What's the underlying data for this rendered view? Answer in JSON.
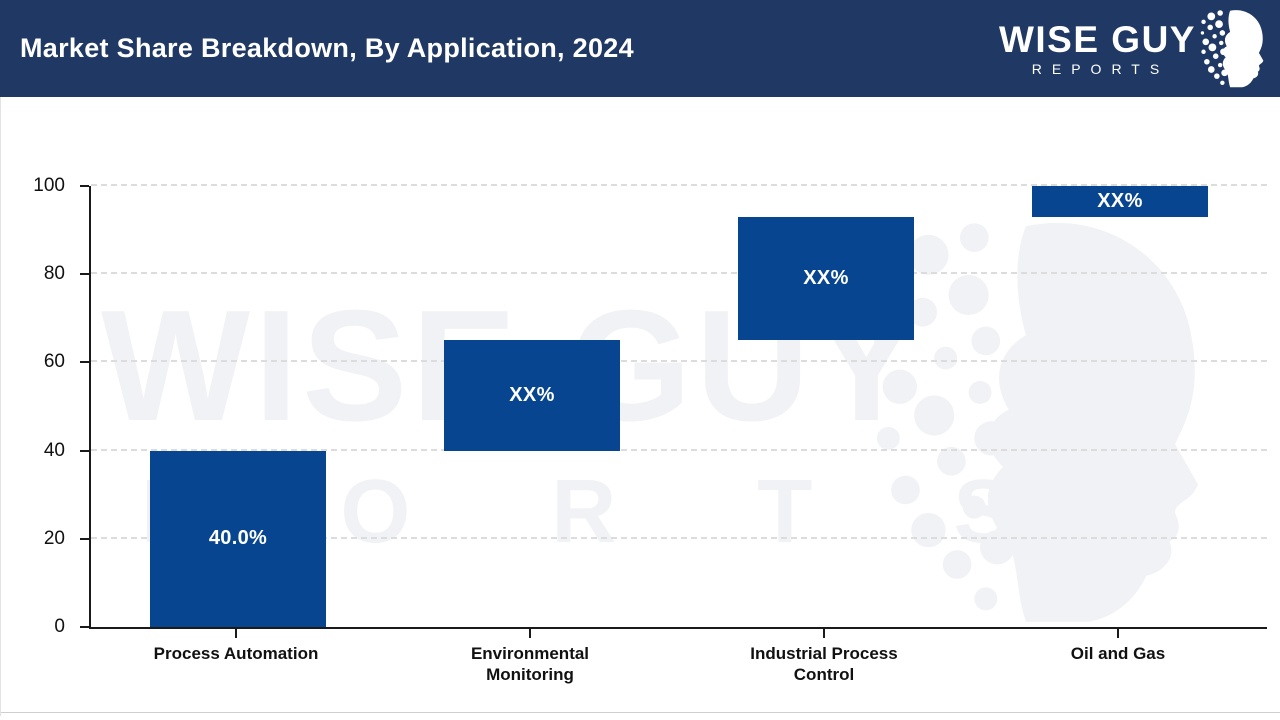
{
  "header": {
    "title": "Market Share Breakdown, By Application, 2024",
    "logo": {
      "line1": "WISE GUY",
      "line2": "REPORTS"
    }
  },
  "watermark": {
    "line1": "WISE GUY",
    "line2": "P O R T S"
  },
  "colors": {
    "header_bg": "#1f3864",
    "bar": "#084590",
    "bar_label": "#ffffff",
    "gridline": "#dcdcdc",
    "watermark": "#f1f2f5"
  },
  "chart_data": {
    "type": "bar",
    "variant": "floating-waterfall",
    "title": "Market Share Breakdown, By Application, 2024",
    "categories": [
      "Process Automation",
      "Environmental\nMonitoring",
      "Industrial Process\nControl",
      "Oil and Gas"
    ],
    "segments": [
      {
        "category": "Process Automation",
        "start": 0,
        "end": 40,
        "label": "40.0%"
      },
      {
        "category": "Environmental Monitoring",
        "start": 40,
        "end": 65,
        "label": "XX%"
      },
      {
        "category": "Industrial Process Control",
        "start": 65,
        "end": 93,
        "label": "XX%"
      },
      {
        "category": "Oil and Gas",
        "start": 93,
        "end": 100,
        "label": "XX%"
      }
    ],
    "ylim": [
      0,
      100
    ],
    "yticks": [
      0,
      20,
      40,
      60,
      80,
      100
    ],
    "grid": "horizontal-dashed",
    "legend": "none",
    "xlabel": "",
    "ylabel": ""
  }
}
